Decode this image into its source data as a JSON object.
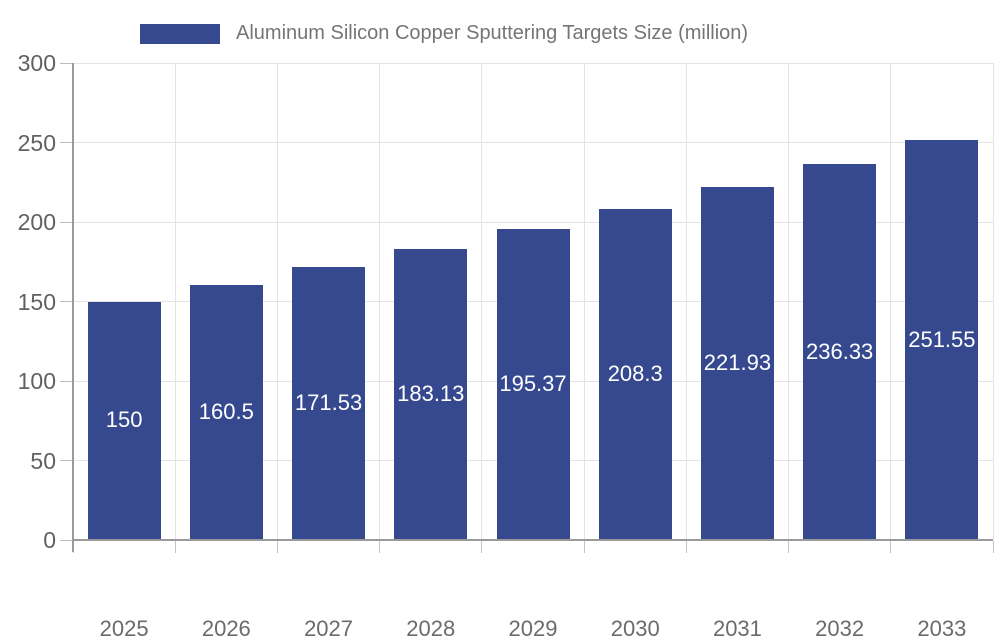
{
  "legend": {
    "label": "Aluminum Silicon Copper Sputtering Targets Size (million)"
  },
  "chart_data": {
    "type": "bar",
    "title": "Aluminum Silicon Copper Sputtering Targets Size (million)",
    "categories": [
      "2025",
      "2026",
      "2027",
      "2028",
      "2029",
      "2030",
      "2031",
      "2032",
      "2033"
    ],
    "values": [
      150,
      160.5,
      171.53,
      183.13,
      195.37,
      208.3,
      221.93,
      236.33,
      251.55
    ],
    "value_labels": [
      "150",
      "160.5",
      "171.53",
      "183.13",
      "195.37",
      "208.3",
      "221.93",
      "236.33",
      "251.55"
    ],
    "xlabel": "",
    "ylabel": "",
    "ylim": [
      0,
      300
    ],
    "ytick_interval": 50,
    "ytick_labels": [
      "0",
      "50",
      "100",
      "150",
      "200",
      "250",
      "300"
    ],
    "grid": "on",
    "legend_position": "top",
    "bar_color": "#36498f",
    "bar_value_text_color": "#ffffff",
    "axis_color": "#9a9a9a",
    "grid_color": "#e4e4e4",
    "tick_label_color": "#616161"
  }
}
